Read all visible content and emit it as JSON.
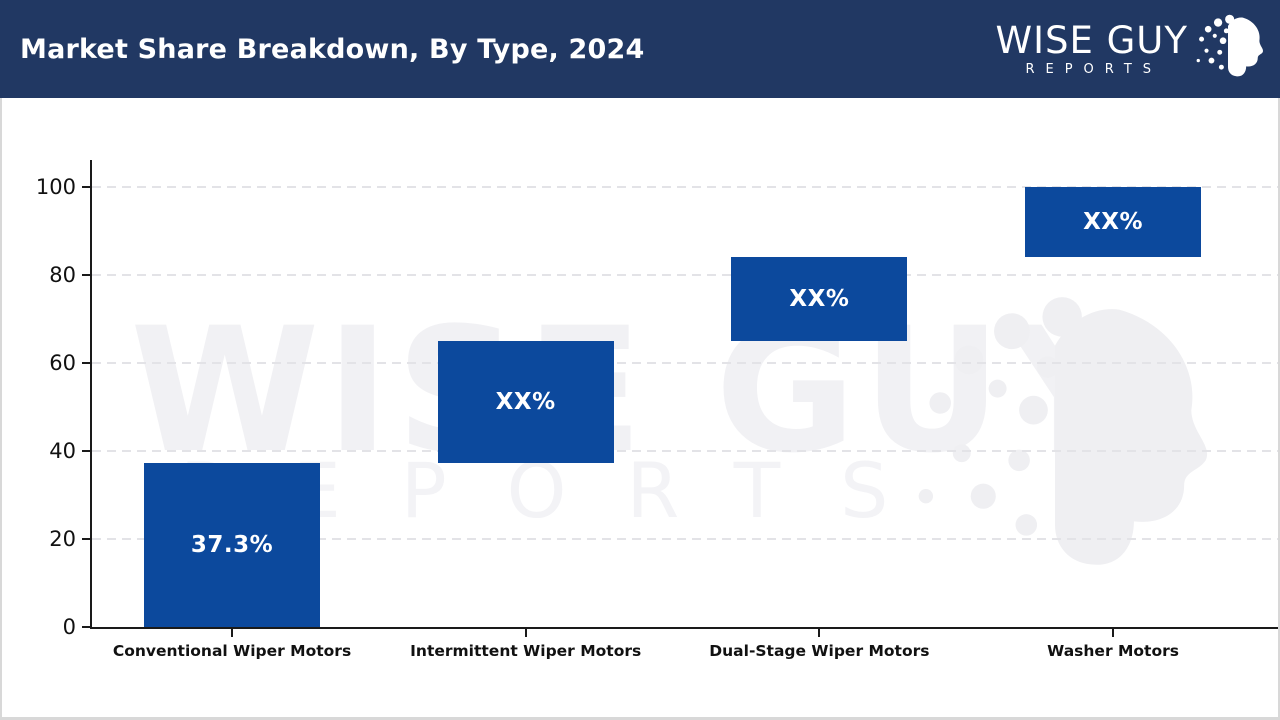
{
  "header": {
    "bg_color": "#213863",
    "title": "Market Share Breakdown, By Type, 2024",
    "logo": {
      "name": "WISE GUY",
      "subtitle": "REPORTS"
    }
  },
  "watermark": {
    "line1": "WISE GUY",
    "line2": "REPORTS"
  },
  "chart_data": {
    "type": "bar",
    "subtype": "floating-segment-waterfall",
    "title": "Market Share Breakdown, By Type, 2024",
    "categories": [
      "Conventional Wiper Motors",
      "Intermittent Wiper Motors",
      "Dual-Stage Wiper Motors",
      "Washer Motors"
    ],
    "segments": [
      {
        "category": "Conventional Wiper Motors",
        "start": 0,
        "end": 37.3,
        "label": "37.3%"
      },
      {
        "category": "Intermittent Wiper Motors",
        "start": 37.3,
        "end": 65,
        "label": "XX%"
      },
      {
        "category": "Dual-Stage Wiper Motors",
        "start": 65,
        "end": 84,
        "label": "XX%"
      },
      {
        "category": "Washer Motors",
        "start": 84,
        "end": 100,
        "label": "XX%"
      }
    ],
    "y_ticks": [
      0,
      20,
      40,
      60,
      80,
      100
    ],
    "ylim": [
      0,
      106
    ],
    "xlabel": "",
    "ylabel": "",
    "bar_color": "#0C499D",
    "bar_label_color": "#ffffff",
    "grid": {
      "horizontal": true,
      "style": "dashed",
      "color": "#e3e3e7"
    },
    "legend": "none"
  }
}
